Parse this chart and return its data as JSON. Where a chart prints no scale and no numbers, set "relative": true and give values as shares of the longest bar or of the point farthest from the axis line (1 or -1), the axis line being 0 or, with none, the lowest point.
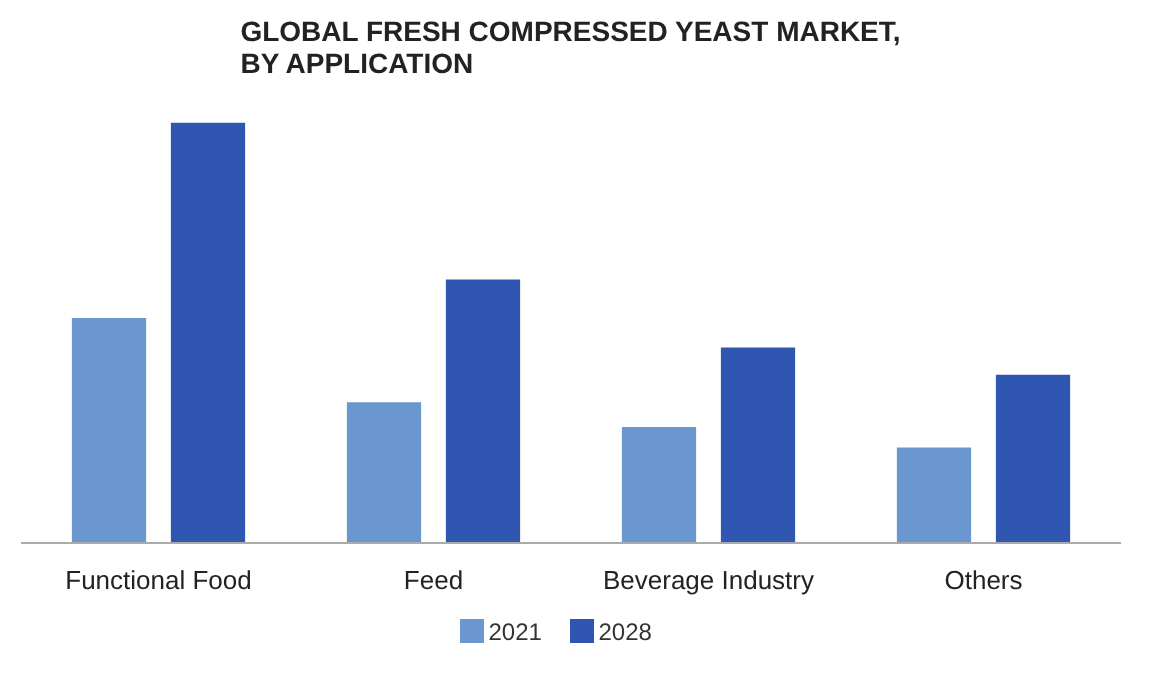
{
  "chart_data": {
    "type": "bar",
    "title": "GLOBAL FRESH COMPRESSED YEAST MARKET, BY APPLICATION",
    "categories": [
      "Functional Food",
      "Feed",
      "Beverage Industry",
      "Others"
    ],
    "relative": true,
    "series": [
      {
        "name": "2021",
        "color": "#6a97d0",
        "values": [
          0.535,
          0.335,
          0.276,
          0.227
        ]
      },
      {
        "name": "2028",
        "color": "#2f56b0",
        "values": [
          1,
          0.627,
          0.465,
          0.4
        ]
      }
    ],
    "legend": "bottom"
  }
}
